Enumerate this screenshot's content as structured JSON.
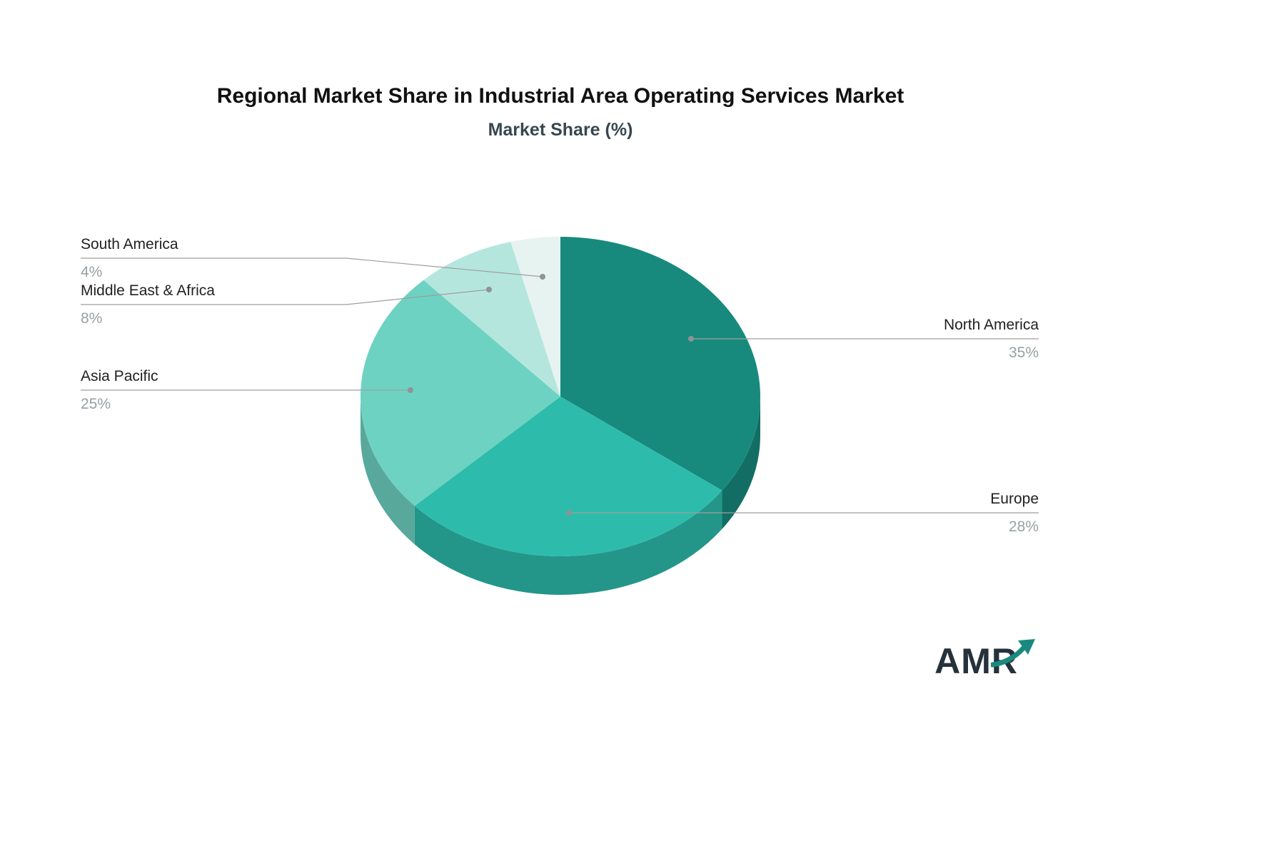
{
  "chart_data": {
    "type": "pie",
    "title": "Regional Market Share in Industrial Area Operating Services Market",
    "subtitle": "Market Share (%)",
    "unit": "%",
    "effect": "3d",
    "start_angle_deg": -90,
    "direction": "clockwise",
    "legend_position": "none",
    "slices": [
      {
        "label": "North America",
        "value": 35,
        "display": "35%",
        "color": "#178a7d"
      },
      {
        "label": "Europe",
        "value": 28,
        "display": "28%",
        "color": "#2dbcab"
      },
      {
        "label": "Asia Pacific",
        "value": 25,
        "display": "25%",
        "color": "#6ed2c2"
      },
      {
        "label": "Middle East & Africa",
        "value": 8,
        "display": "8%",
        "color": "#b5e6dd"
      },
      {
        "label": "South America",
        "value": 4,
        "display": "4%",
        "color": "#e6f3f0"
      }
    ]
  },
  "logo": {
    "text": "AMR",
    "arrow_color": "#1b8a7e"
  },
  "style": {
    "leader_line_color": "#9e9e9e",
    "leader_dot_color": "#8d9396",
    "label_color": "#212121",
    "value_color": "#98a0a3"
  }
}
